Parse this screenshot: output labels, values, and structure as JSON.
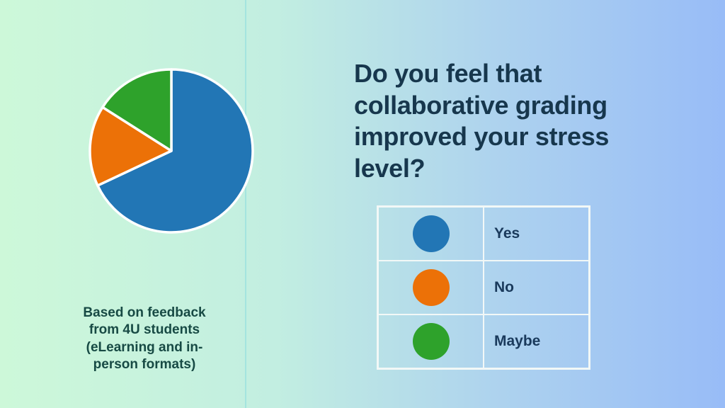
{
  "background": {
    "gradient_left": "#cdf8d9",
    "gradient_right": "#98bcf7"
  },
  "title": {
    "text": "Do you feel that collaborative grading improved your stress level?",
    "lines": [
      "Do you feel that",
      "collaborative grading",
      "improved your stress",
      "level?"
    ],
    "color": "#17374d"
  },
  "caption": {
    "text": "Based on feedback from 4U students (eLearning and in-person formats)",
    "lines": [
      "Based on feedback",
      "from 4U students",
      "(eLearning and in-",
      "person formats)"
    ],
    "color": "#174a44"
  },
  "legend": {
    "border_color": "#f2f8f7",
    "rows": [
      {
        "label": "Yes",
        "color": "#2276b5",
        "swatch": "circle"
      },
      {
        "label": "No",
        "color": "#ec7107",
        "swatch": "circle"
      },
      {
        "label": "Maybe",
        "color": "#2ea22b",
        "swatch": "circle"
      }
    ]
  },
  "chart_data": {
    "type": "pie",
    "title": "Do you feel that collaborative grading improved your stress level?",
    "labels": [
      "Yes",
      "No",
      "Maybe"
    ],
    "values": [
      68,
      16,
      16
    ],
    "values_note": "percent share estimated from slice angles; no numeric data labels are shown in the image",
    "colors": [
      "#2276b5",
      "#ec7107",
      "#2ea22b"
    ],
    "start_angle": "top",
    "direction": "clockwise",
    "slice_border_color": "#ffffff",
    "legend_position": "right side, 3-row table with color swatches"
  }
}
